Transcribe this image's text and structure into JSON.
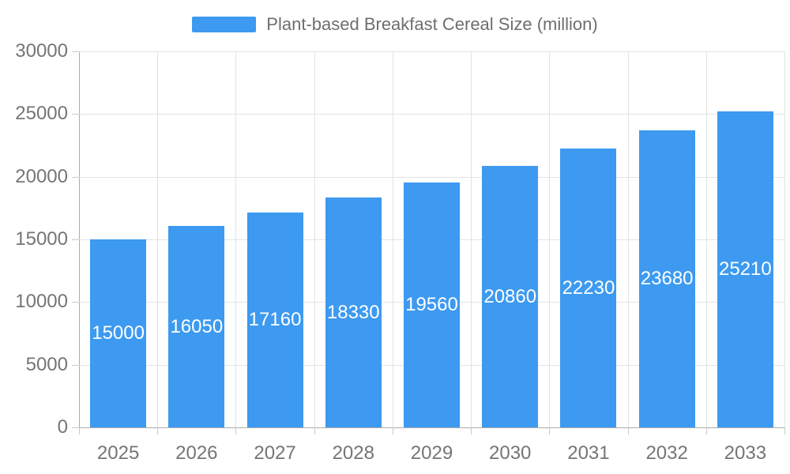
{
  "chart_data": {
    "type": "bar",
    "title": "Plant-based Breakfast Cereal Size (million)",
    "categories": [
      "2025",
      "2026",
      "2027",
      "2028",
      "2029",
      "2030",
      "2031",
      "2032",
      "2033"
    ],
    "values": [
      15000,
      16050,
      17160,
      18330,
      19560,
      20860,
      22230,
      23680,
      25210
    ],
    "y_ticks": [
      0,
      5000,
      10000,
      15000,
      20000,
      25000,
      30000
    ],
    "ylim": [
      0,
      30000
    ],
    "xlabel": "",
    "ylabel": "",
    "grid": "on",
    "legend_position": "top-center",
    "colors": {
      "bar": "#3d9af0",
      "bar_label_text": "#ffffff",
      "axis_text": "#757575",
      "legend_text": "#6e6e6e",
      "grid_line": "#e3e3e3",
      "axis_line": "#adadad",
      "tick_mark": "#c9c9c9",
      "background": "#ffffff"
    }
  }
}
